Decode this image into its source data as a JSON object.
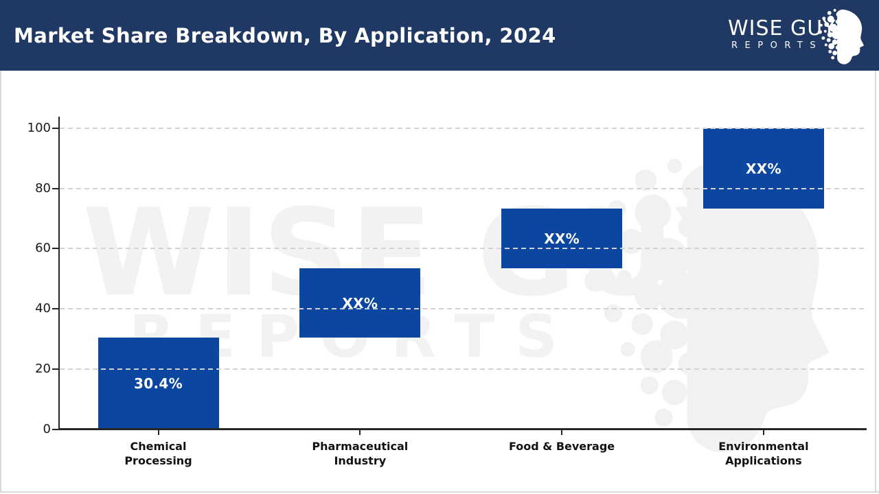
{
  "header": {
    "title": "Market Share Breakdown, By Application, 2024",
    "logo": {
      "line1": "WISE GUY",
      "line2": "REPORTS"
    }
  },
  "watermark": {
    "line1": "WISE GUY",
    "line2": "REPORTS"
  },
  "colors": {
    "header_bg": "#1F3864",
    "bar": "#0B47A1",
    "axis": "#262626",
    "gridline": "#D2D2D2",
    "bar_label_text": "#FFFFFF",
    "watermark": "#F2F2F4",
    "card_border": "#D8D8D8"
  },
  "chart_data": {
    "type": "bar",
    "subtype": "floating-waterfall",
    "title": "Market Share Breakdown, By Application, 2024",
    "categories": [
      "Chemical Processing",
      "Pharmaceutical Industry",
      "Food & Beverage",
      "Environmental Applications"
    ],
    "category_label_lines": [
      [
        "Chemical",
        "Processing"
      ],
      [
        "Pharmaceutical",
        "Industry"
      ],
      [
        "Food & Beverage"
      ],
      [
        "Environmental",
        "Applications"
      ]
    ],
    "segments": [
      {
        "category": "Chemical Processing",
        "from": 0,
        "to": 30.4,
        "label": "30.4%"
      },
      {
        "category": "Pharmaceutical Industry",
        "from": 30.4,
        "to": 53.4,
        "label": "XX%"
      },
      {
        "category": "Food & Beverage",
        "from": 53.4,
        "to": 73.3,
        "label": "XX%"
      },
      {
        "category": "Environmental Applications",
        "from": 73.3,
        "to": 100,
        "label": "XX%"
      }
    ],
    "yticks": [
      0,
      20,
      40,
      60,
      80,
      100
    ],
    "ylim": [
      0,
      105
    ],
    "xlabel": "",
    "ylabel": "",
    "grid": "dashed-horizontal",
    "legend": "none",
    "bar_color": "#0B47A1"
  }
}
